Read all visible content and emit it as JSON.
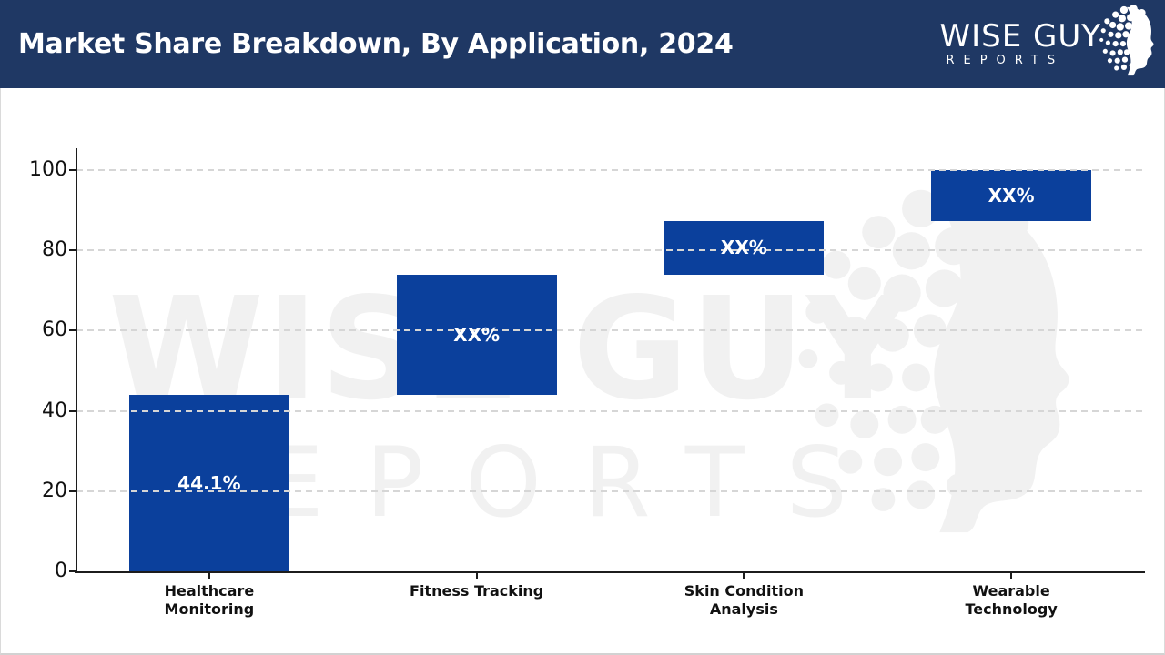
{
  "header": {
    "title": "Market Share Breakdown, By Application, 2024",
    "logo": {
      "wordmark": "WISE GUY",
      "subtext": "REPORTS"
    }
  },
  "watermark": {
    "wordmark": "WISE GUY",
    "subtext": "REPORTS"
  },
  "colors": {
    "header_bg": "#1f3864",
    "bar": "#0b409c",
    "bar_label": "#ffffff",
    "axis": "#1c1c1c",
    "grid": "#d6d6d6",
    "text": "#111111",
    "watermark": "#f1f1f1"
  },
  "chart_data": {
    "type": "bar",
    "subtype": "floating-waterfall",
    "title": "Market Share Breakdown, By Application, 2024",
    "categories": [
      [
        "Healthcare",
        "Monitoring"
      ],
      [
        "Fitness Tracking"
      ],
      [
        "Skin Condition",
        "Analysis"
      ],
      [
        "Wearable",
        "Technology"
      ]
    ],
    "segments": [
      {
        "start": 0,
        "end": 44.1,
        "label": "44.1%"
      },
      {
        "start": 44.1,
        "end": 74.0,
        "label": "XX%"
      },
      {
        "start": 74.0,
        "end": 87.4,
        "label": "XX%"
      },
      {
        "start": 87.4,
        "end": 100,
        "label": "XX%"
      }
    ],
    "y_ticks": [
      0,
      20,
      40,
      60,
      80,
      100
    ],
    "ylim": [
      0,
      105
    ],
    "xlabel": "",
    "ylabel": "",
    "grid": "horizontal-dashed",
    "legend": "none"
  }
}
